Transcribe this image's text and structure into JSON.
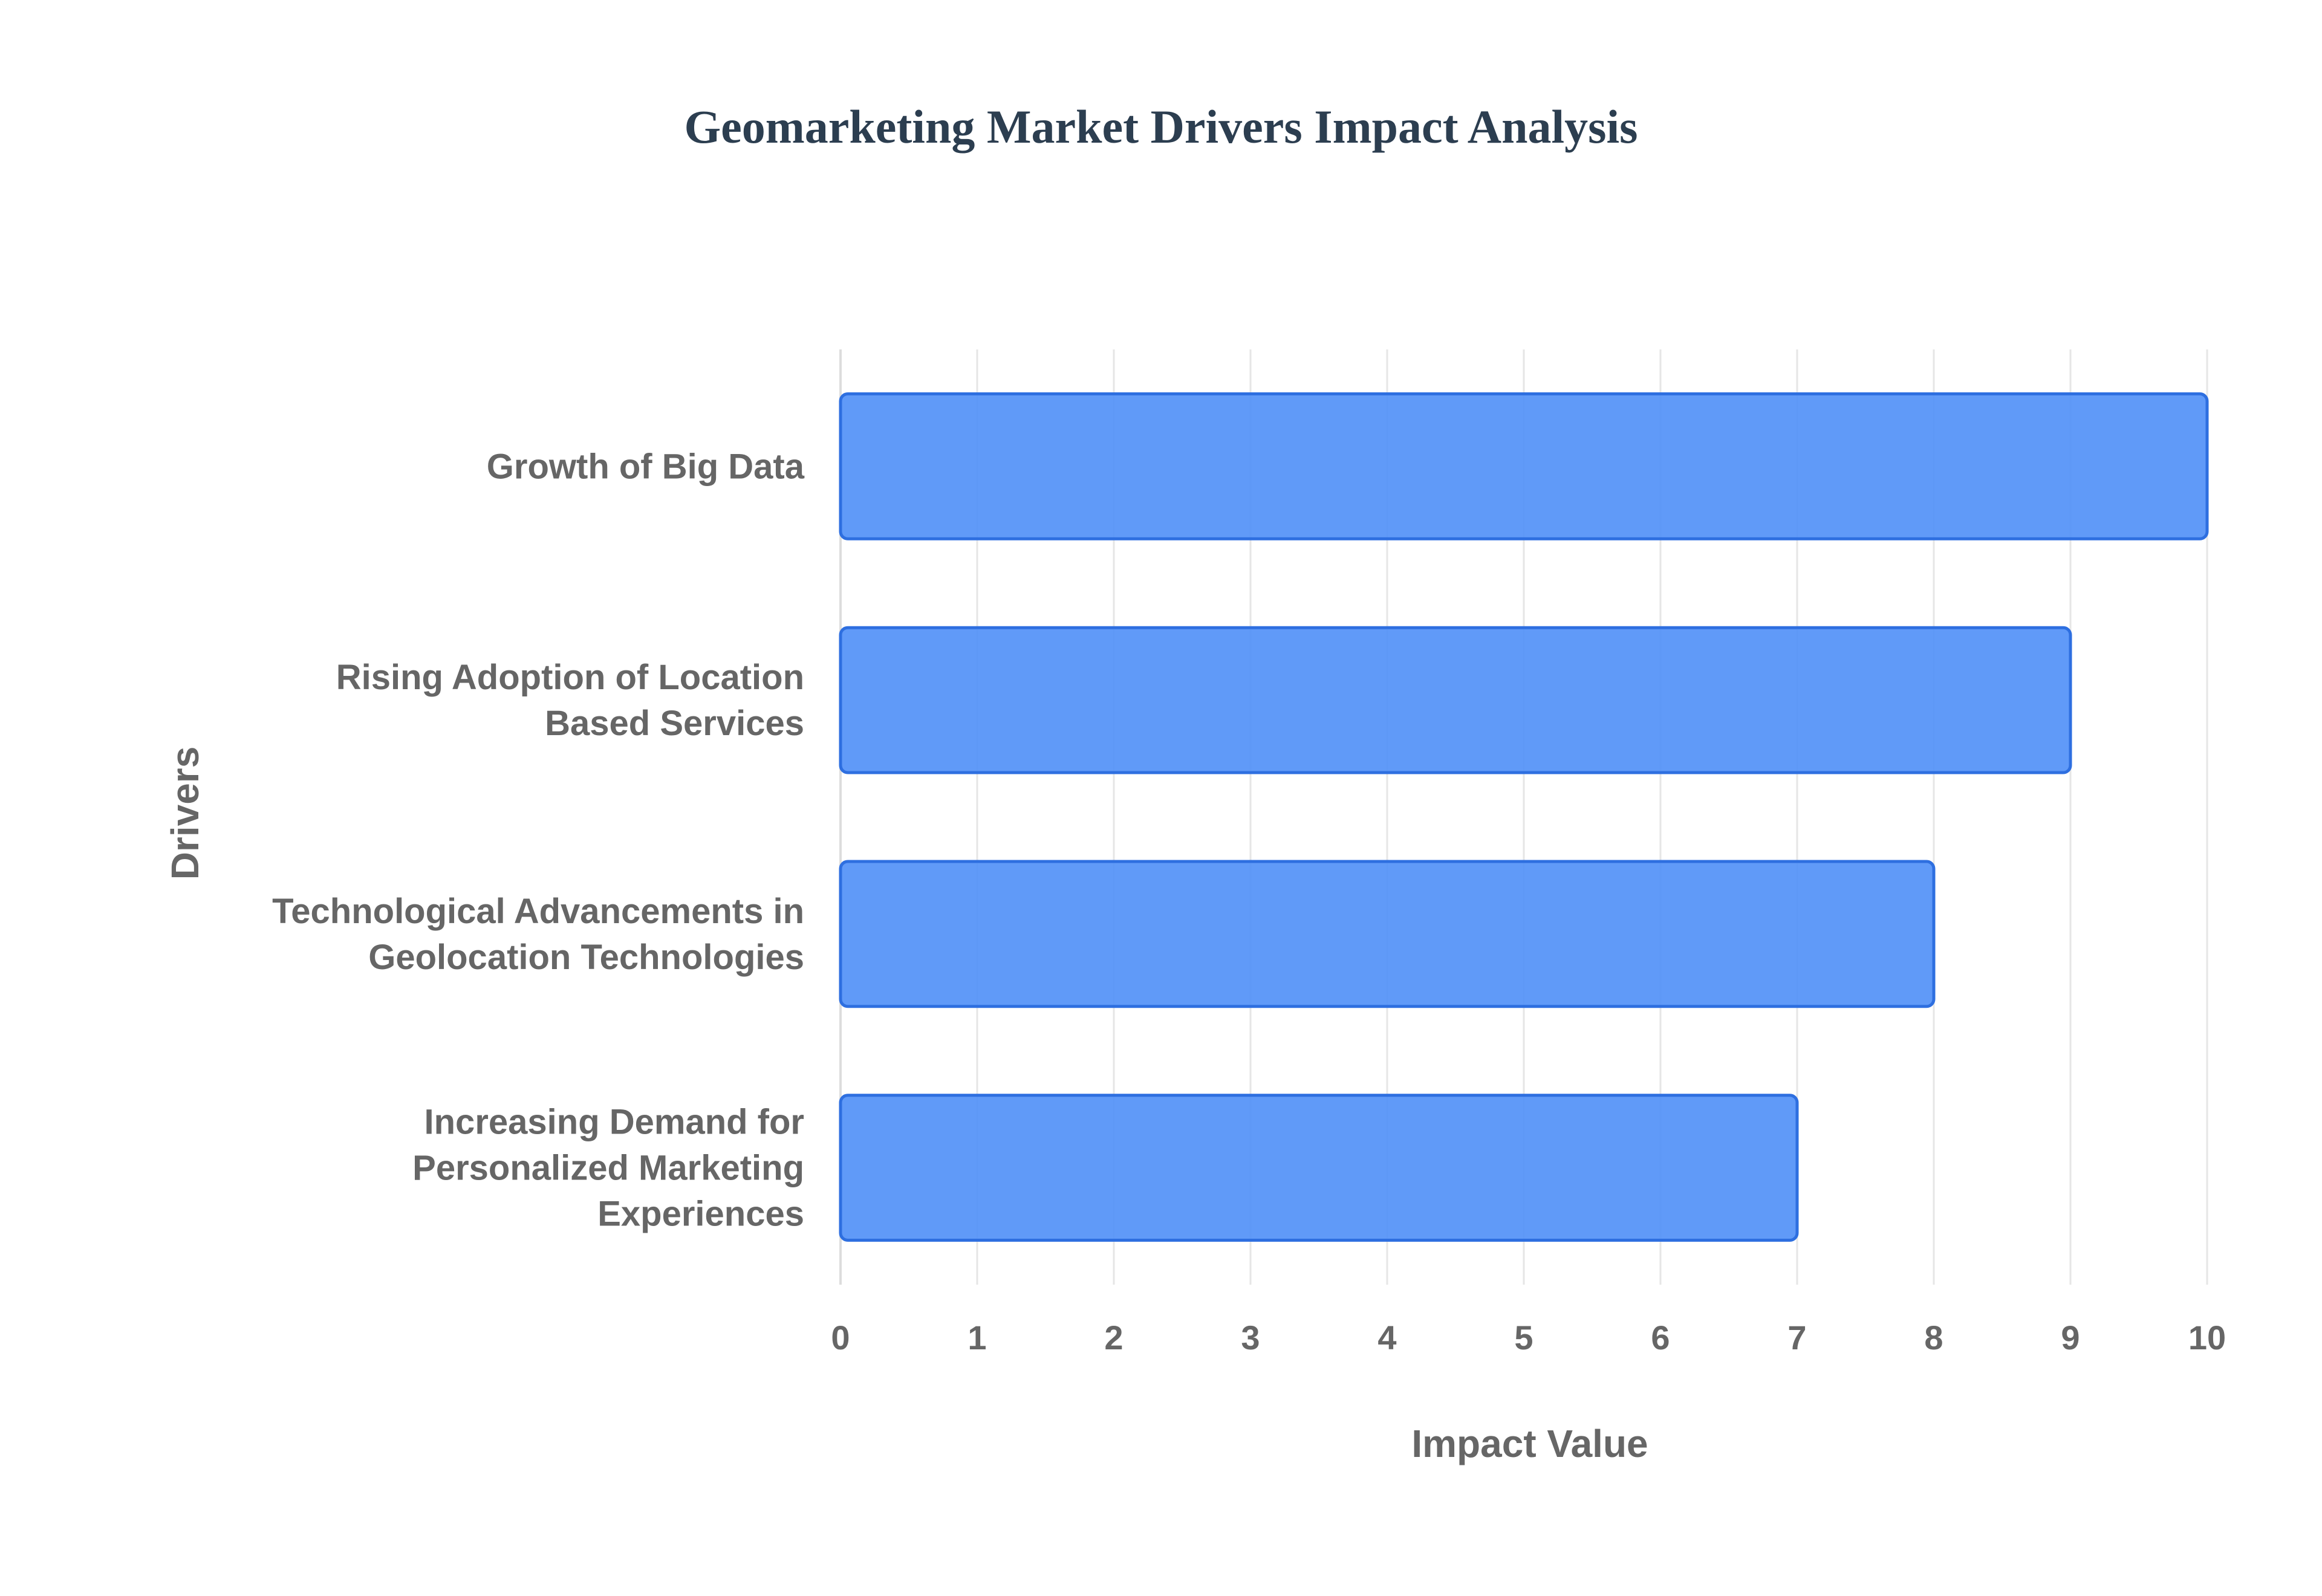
{
  "chart_data": {
    "type": "bar",
    "orientation": "horizontal",
    "title": "Geomarketing Market Drivers Impact Analysis",
    "xlabel": "Impact Value",
    "ylabel": "Drivers",
    "categories": [
      [
        "Growth of Big Data"
      ],
      [
        "Rising Adoption of Location",
        "Based Services"
      ],
      [
        "Technological Advancements in",
        "Geolocation Technologies"
      ],
      [
        "Increasing Demand for",
        "Personalized Marketing",
        "Experiences"
      ]
    ],
    "values": [
      10,
      9,
      8,
      7
    ],
    "xlim": [
      0,
      10
    ],
    "xticks": [
      "0",
      "1",
      "2",
      "3",
      "4",
      "5",
      "6",
      "7",
      "8",
      "9",
      "10"
    ],
    "grid": true,
    "legend": "none",
    "colors": {
      "bar_fill": "#4f8ff7",
      "bar_stroke": "#2e6fe0",
      "grid": "#e6e6e6",
      "text": "#666666",
      "title": "#2c3e50"
    }
  }
}
